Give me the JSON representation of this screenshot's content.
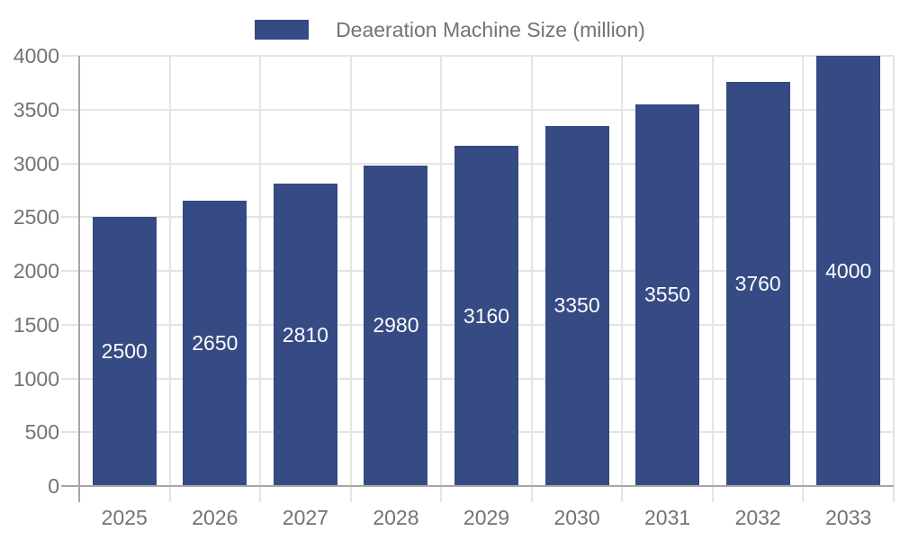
{
  "chart_data": {
    "type": "bar",
    "title": "Deaeration Machine Size (million)",
    "legend_position": "top-center",
    "categories": [
      "2025",
      "2026",
      "2027",
      "2028",
      "2029",
      "2030",
      "2031",
      "2032",
      "2033"
    ],
    "series": [
      {
        "name": "Deaeration Machine Size (million)",
        "values": [
          2500,
          2650,
          2810,
          2980,
          3160,
          3350,
          3550,
          3760,
          4000
        ]
      }
    ],
    "bar_value_labels_visible": true,
    "xlabel": "",
    "ylabel": "",
    "ylim": [
      0,
      4000
    ],
    "yticks": [
      0,
      500,
      1000,
      1500,
      2000,
      2500,
      3000,
      3500,
      4000
    ],
    "grid": true,
    "colors": {
      "bar": "#364a84",
      "grid": "#e4e4e4",
      "axis": "#a6a6a6",
      "tick_label": "#737373",
      "legend_text": "#737373",
      "value_label": "#ffffff",
      "background": "#ffffff"
    }
  }
}
